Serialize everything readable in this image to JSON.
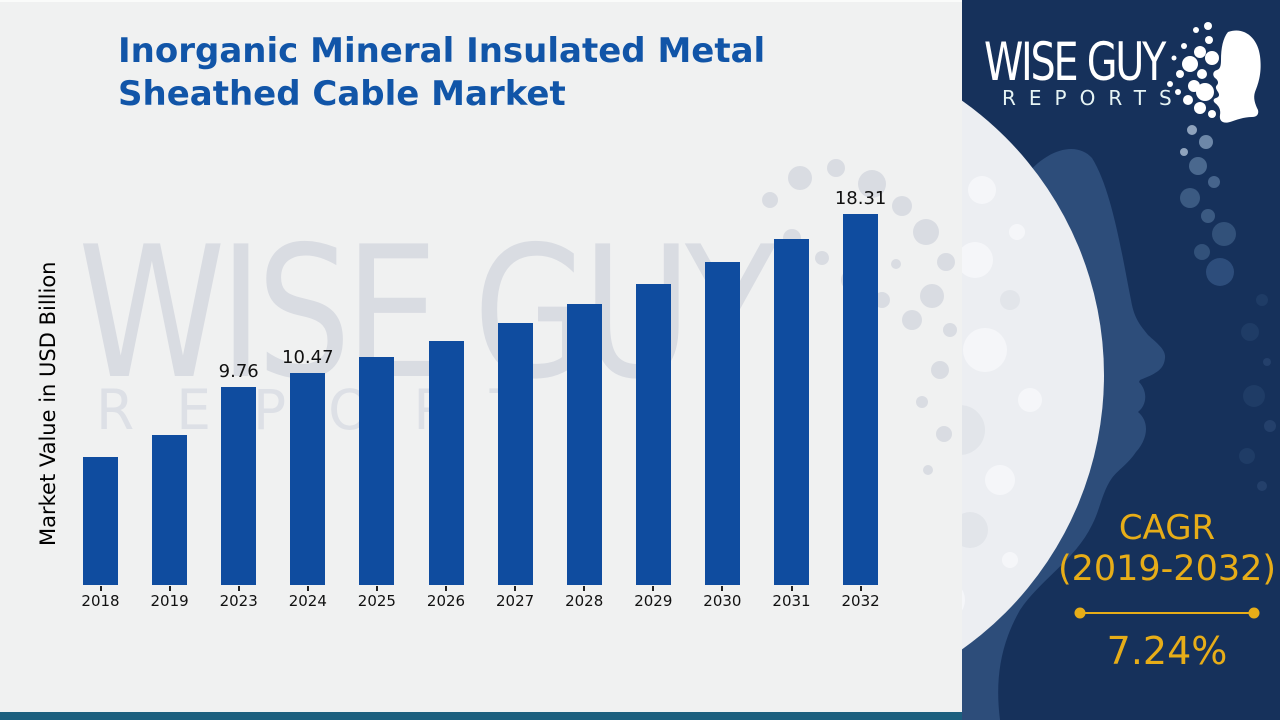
{
  "page": {
    "title": "Inorganic Mineral Insulated Metal Sheathed Cable Market"
  },
  "watermark": {
    "wordmark": "WISE GUY",
    "reports": "REPORTS"
  },
  "brand": {
    "wordmark": "WISE GUY",
    "reports": "REPORTS"
  },
  "cagr": {
    "label": "CAGR",
    "range": "(2019-2032)",
    "value": "7.24%"
  },
  "colors": {
    "background": "#f0f1f1",
    "bar": "#0f4c9f",
    "title_blue": "#1155a8",
    "panel_navy": "#16315b",
    "face_blue": "#2d4d7a",
    "gold": "#e7ad18",
    "teal_strip": "#1c5f7e",
    "watermark_gray": "#d9dce2"
  },
  "chart_data": {
    "type": "bar",
    "title": "Inorganic Mineral Insulated Metal Sheathed Cable Market",
    "xlabel": "",
    "ylabel": "Market Value in USD Billion",
    "categories": [
      "2018",
      "2019",
      "2023",
      "2024",
      "2025",
      "2026",
      "2027",
      "2028",
      "2029",
      "2030",
      "2031",
      "2032"
    ],
    "values": [
      6.32,
      7.38,
      9.76,
      10.47,
      11.23,
      12.04,
      12.91,
      13.85,
      14.85,
      15.92,
      17.08,
      18.31
    ],
    "data_labels": {
      "2023": "9.76",
      "2024": "10.47",
      "2032": "18.31"
    },
    "ylim": [
      0,
      19.6
    ],
    "grid": false,
    "legend": false,
    "unit": "USD Billion"
  }
}
